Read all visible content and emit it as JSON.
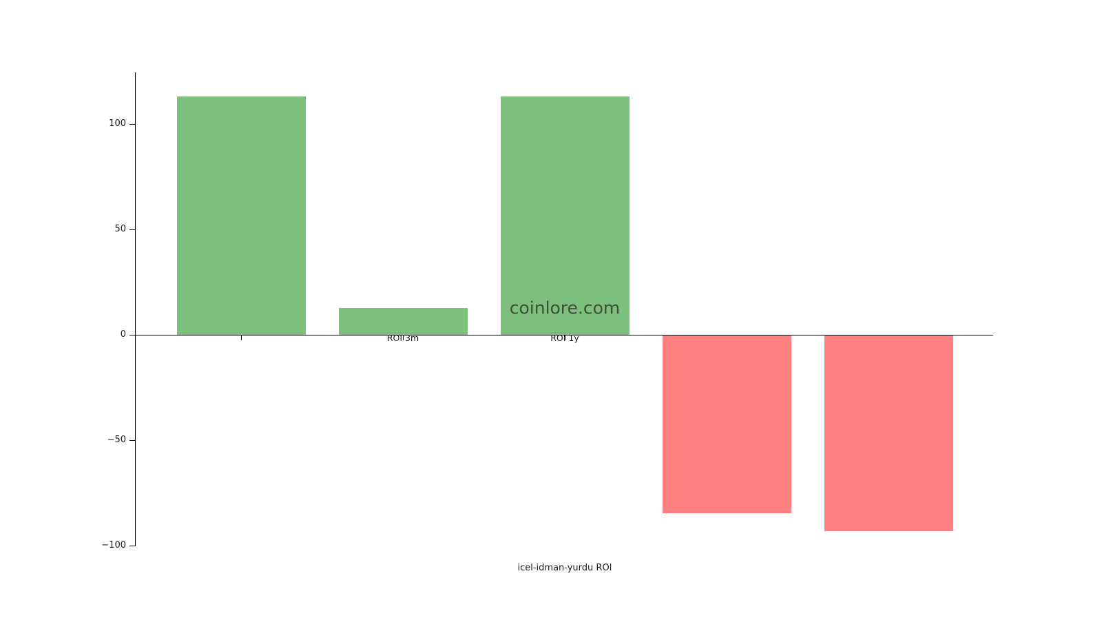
{
  "chart_data": {
    "type": "bar",
    "title": "icel-idman-yurdu ROI",
    "watermark": "coinlore.com",
    "categories": [
      "",
      "ROI 3m",
      "ROI 1y",
      "",
      ""
    ],
    "values": [
      113.1,
      12.6,
      113.1,
      -84.3,
      -92.8
    ],
    "bar_colors": [
      "#7cc07c",
      "#7cc07c",
      "#7cc07c",
      "#ff8080",
      "#ff8080"
    ],
    "positive_color": "#7cc07c",
    "negative_color": "#ff8080",
    "axis_color": "#000000",
    "text_color": "#1a1a1a",
    "watermark_color": "#303530",
    "y_ticks": [
      {
        "value": 100,
        "label": "100"
      },
      {
        "value": 50,
        "label": "50"
      },
      {
        "value": 0,
        "label": "0"
      },
      {
        "value": -50,
        "label": "−50"
      },
      {
        "value": -100,
        "label": "−100"
      }
    ],
    "ylim": [
      -100,
      125
    ],
    "xlabel": "",
    "ylabel": "",
    "grid": false,
    "legend": null
  }
}
